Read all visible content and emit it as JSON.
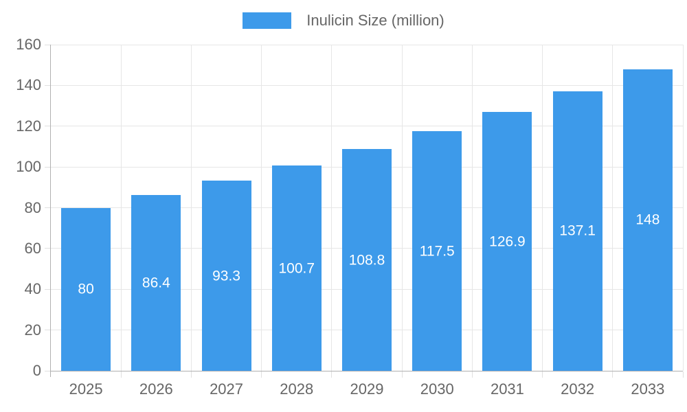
{
  "chart_data": {
    "type": "bar",
    "title": "",
    "legend": "Inulicin Size (million)",
    "legend_position": "top",
    "categories": [
      "2025",
      "2026",
      "2027",
      "2028",
      "2029",
      "2030",
      "2031",
      "2032",
      "2033"
    ],
    "series": [
      {
        "name": "Inulicin Size (million)",
        "values": [
          80,
          86.4,
          93.3,
          100.7,
          108.8,
          117.5,
          126.9,
          137.1,
          148
        ],
        "value_labels": [
          "80",
          "86.4",
          "93.3",
          "100.7",
          "108.8",
          "117.5",
          "126.9",
          "137.1",
          "148"
        ]
      }
    ],
    "xlabel": "",
    "ylabel": "",
    "ylim": [
      0,
      160
    ],
    "ytick_step": 20,
    "ytick_labels": [
      "0",
      "20",
      "40",
      "60",
      "80",
      "100",
      "120",
      "140",
      "160"
    ],
    "grid": true,
    "colors": {
      "bar": "#3d9aea",
      "axis_label": "#666666",
      "axis_line": "#b0b0b0",
      "gridline": "#e6e6e6",
      "value_label": "#ffffff",
      "background": "#ffffff"
    }
  }
}
